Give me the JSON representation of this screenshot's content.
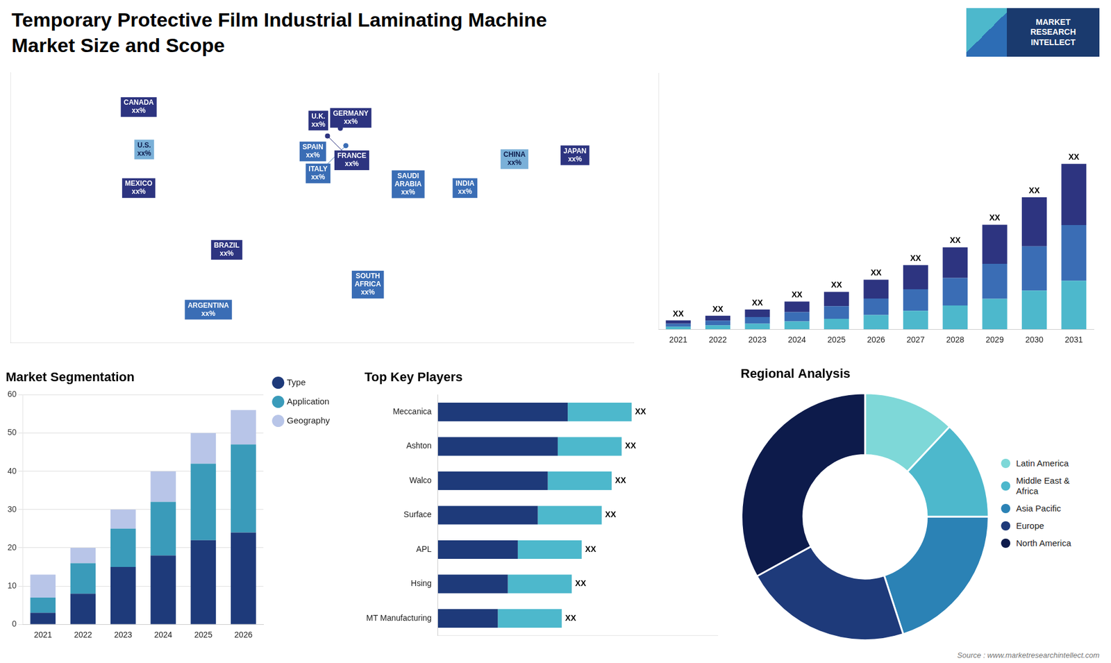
{
  "title": "Temporary Protective Film Industrial Laminating Machine",
  "subtitle": "Market Size and Scope",
  "annotations": [
    {
      "text": "MARKET\nRESEARCH\nINTELLECT"
    },
    {
      "text": "Source : www.marketresearchintellect.com"
    }
  ],
  "chart_data": [
    {
      "type": "scatter",
      "annotations": [
        {
          "text": "CANADA\nxx%",
          "x": -100,
          "y": 62
        },
        {
          "text": "U.S.\nxx%",
          "x": -97,
          "y": 40
        },
        {
          "text": "MEXICO\nxx%",
          "x": -100,
          "y": 20
        },
        {
          "text": "BRAZIL\nxx%",
          "x": -52,
          "y": -12
        },
        {
          "text": "ARGENTINA\nxx%",
          "x": -62,
          "y": -43
        },
        {
          "text": "U.K.\nxx%",
          "x": -2,
          "y": 55
        },
        {
          "text": "FRANCE\nxx%",
          "x": 3,
          "y": 47
        },
        {
          "text": "SPAIN\nxx%",
          "x": -5,
          "y": 39
        },
        {
          "text": "GERMANY\nxx%",
          "x": 10,
          "y": 51
        },
        {
          "text": "ITALY\nxx%",
          "x": 13,
          "y": 42
        },
        {
          "text": "SAUDI\nARABIA\nxx%",
          "x": 47,
          "y": 22
        },
        {
          "text": "SOUTH\nAFRICA\nxx%",
          "x": 25,
          "y": -30
        },
        {
          "text": "CHINA\nxx%",
          "x": 105,
          "y": 35
        },
        {
          "text": "INDIA\nxx%",
          "x": 78,
          "y": 20
        },
        {
          "text": "JAPAN\nxx%",
          "x": 138,
          "y": 37
        }
      ],
      "colors": [
        "#2d3480",
        "#7ab0d8",
        "#2d3480",
        "#2d3480",
        "#3a6db5",
        "#2d3480",
        "#2d3480",
        "#3a6db5",
        "#2d3480",
        "#3a6db5",
        "#3a6db5",
        "#3a6db5",
        "#7ab0d8",
        "#3a6db5",
        "#2d3480"
      ],
      "xlim": [
        -170,
        170
      ],
      "ylim": [
        -60,
        80
      ],
      "tick_labels": false,
      "grid": false
    },
    {
      "type": "bar",
      "stacked": true,
      "categories": [
        "2021",
        "2022",
        "2023",
        "2024",
        "2025",
        "2026",
        "2027",
        "2028",
        "2029",
        "2030",
        "2031"
      ],
      "series": [
        {
          "color": "#4db8cc",
          "values": [
            0.8,
            1.2,
            1.7,
            2.4,
            3.2,
            4.3,
            5.6,
            7.2,
            9.2,
            11.7,
            14.7
          ]
        },
        {
          "color": "#3a6db5",
          "values": [
            0.9,
            1.4,
            2.0,
            2.8,
            3.8,
            5.0,
            6.5,
            8.3,
            10.6,
            13.4,
            16.8
          ]
        },
        {
          "color": "#2d3480",
          "values": [
            1.0,
            1.5,
            2.3,
            3.2,
            4.3,
            5.7,
            7.3,
            9.3,
            11.8,
            14.8,
            18.5
          ],
          "data_labels": true,
          "value_labels": [
            "XX",
            "XX",
            "XX",
            "XX",
            "XX",
            "XX",
            "XX",
            "XX",
            "XX",
            "XX",
            "XX"
          ]
        }
      ],
      "ylim": [
        0,
        77.5
      ],
      "tick_labels": "x",
      "grid": false
    },
    {
      "type": "bar",
      "stacked": true,
      "title": "Market Segmentation",
      "categories": [
        "2021",
        "2022",
        "2023",
        "2024",
        "2025",
        "2026"
      ],
      "series": [
        {
          "name": "Type",
          "color": "#1e3a7a",
          "values": [
            3,
            8,
            15,
            18,
            22,
            24
          ]
        },
        {
          "name": "Application",
          "color": "#3a9bba",
          "values": [
            4,
            8,
            10,
            14,
            20,
            23
          ]
        },
        {
          "name": "Geography",
          "color": "#b8c5e8",
          "values": [
            6,
            4,
            5,
            8,
            8,
            9
          ]
        }
      ],
      "ylim": [
        0,
        60
      ],
      "yticks": [
        0,
        10,
        20,
        30,
        40,
        50,
        60
      ],
      "grid": true,
      "legend": "right"
    },
    {
      "type": "bar",
      "orientation": "horizontal",
      "stacked": true,
      "title": "Top Key Players",
      "categories": [
        "Meccanica",
        "Ashton",
        "Walco",
        "Surface",
        "APL",
        "Hsing",
        "MT Manufacturing"
      ],
      "series": [
        {
          "color": "#1e3a7a",
          "values": [
            6.5,
            6.0,
            5.5,
            5.0,
            4.0,
            3.5,
            3.0
          ]
        },
        {
          "color": "#4db8cc",
          "values": [
            3.2,
            3.2,
            3.2,
            3.2,
            3.2,
            3.2,
            3.2
          ],
          "data_labels": true,
          "value_labels": [
            "XX",
            "XX",
            "XX",
            "XX",
            "XX",
            "XX",
            "XX"
          ]
        }
      ],
      "xlim": [
        0,
        14
      ],
      "tick_labels": "y",
      "grid": false
    },
    {
      "type": "doughnut",
      "title": "Regional Analysis",
      "categories": [
        "Latin America",
        "Middle East &\nAfrica",
        "Asia Pacific",
        "Europe",
        "North America"
      ],
      "values": [
        12,
        13,
        20,
        22,
        33
      ],
      "colors": [
        "#7ed8d8",
        "#4db8cc",
        "#2b82b5",
        "#1e3a7a",
        "#0d1b4b"
      ],
      "legend": "right"
    }
  ]
}
